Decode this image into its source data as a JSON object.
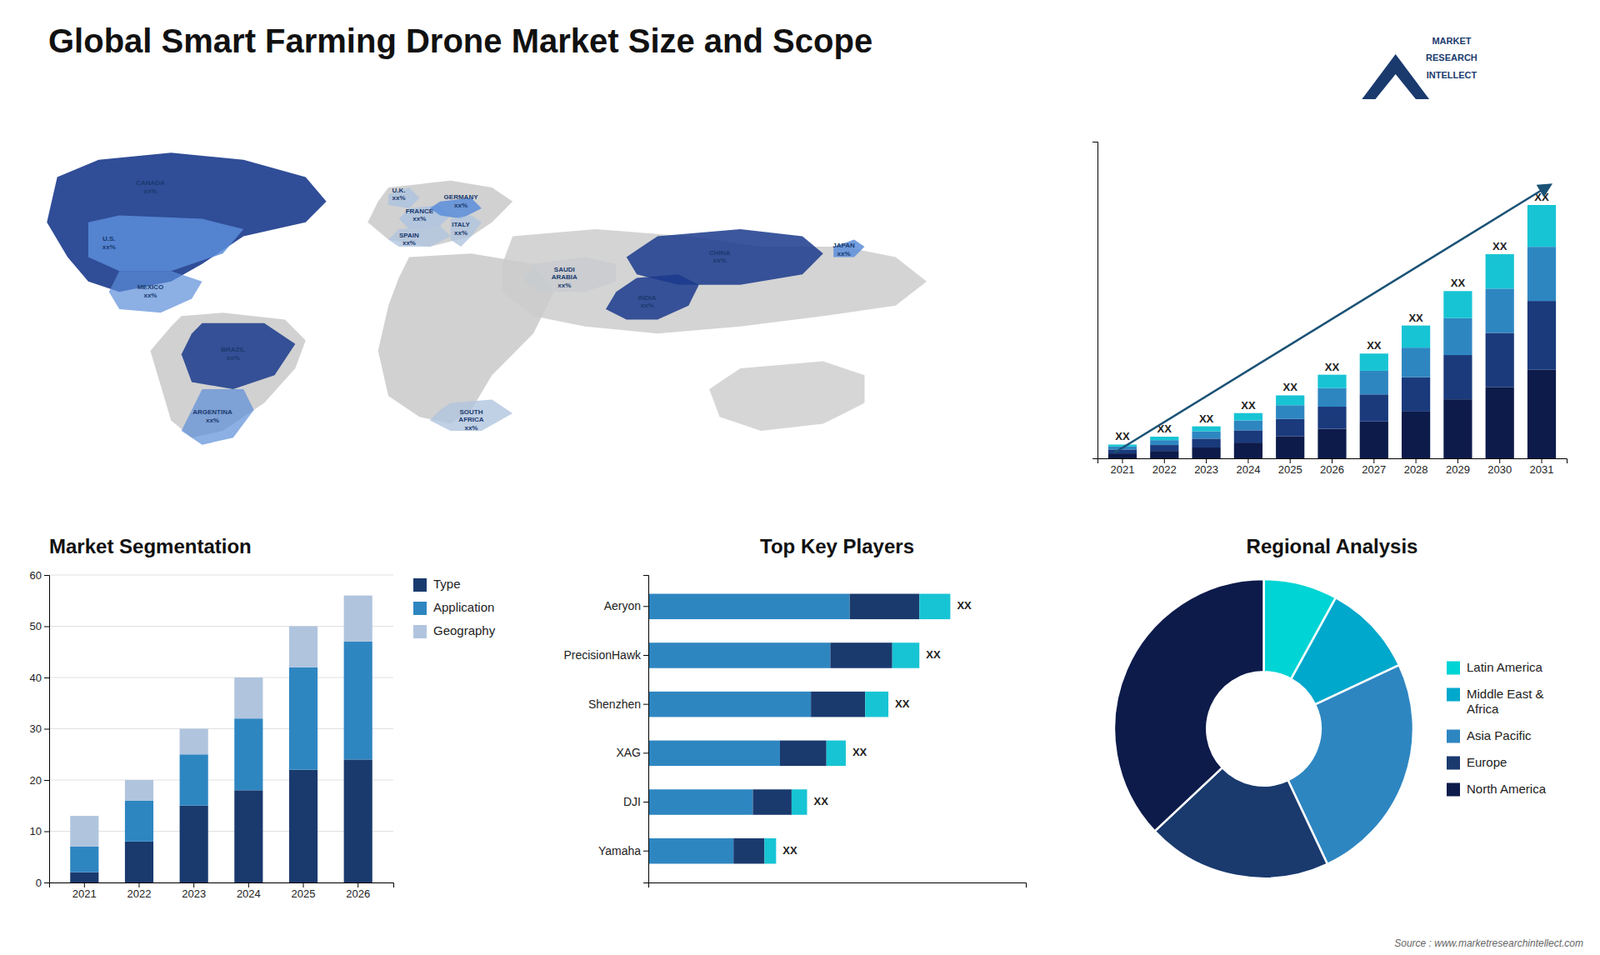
{
  "chart_data": [
    {
      "type": "map",
      "title": "Global Smart Farming Drone Market Size and Scope",
      "annotations": [
        "CANADA\nxx%",
        "U.S.\nxx%",
        "MEXICO\nxx%",
        "BRAZIL\nxx%",
        "ARGENTINA\nxx%",
        "U.K.\nxx%",
        "FRANCE\nxx%",
        "SPAIN\nxx%",
        "GERMANY\nxx%",
        "ITALY\nxx%",
        "SAUDI\nARABIA\nxx%",
        "SOUTH\nAFRICA\nxx%",
        "CHINA\nxx%",
        "JAPAN\nxx%",
        "INDIA\nxx%"
      ]
    },
    {
      "type": "logo",
      "annotations": [
        "MARKET",
        "RESEARCH",
        "INTELLECT"
      ]
    },
    {
      "type": "bar",
      "stacked": true,
      "tick_labels": "x",
      "categories": [
        "2021",
        "2022",
        "2023",
        "2024",
        "2025",
        "2026",
        "2027",
        "2028",
        "2029",
        "2030",
        "2031"
      ],
      "series": [
        {
          "color": "#0d1b4b",
          "values": [
            1.0,
            1.5,
            2.2,
            3.2,
            4.5,
            6.0,
            7.5,
            9.5,
            12.0,
            14.5,
            18.0
          ]
        },
        {
          "color": "#1a3a7c",
          "values": [
            0.8,
            1.2,
            1.8,
            2.5,
            3.5,
            4.5,
            5.5,
            7.0,
            9.0,
            11.0,
            14.0
          ]
        },
        {
          "color": "#2e86c1",
          "values": [
            0.6,
            1.0,
            1.5,
            2.0,
            2.8,
            3.8,
            4.8,
            6.0,
            7.5,
            9.0,
            11.0
          ]
        },
        {
          "color": "#17c4d4",
          "values": [
            0.4,
            0.7,
            1.0,
            1.5,
            2.0,
            2.7,
            3.5,
            4.5,
            5.5,
            7.0,
            8.5
          ]
        }
      ],
      "ylim": [
        0,
        64.375
      ],
      "annotations": [
        "XX",
        "XX",
        "XX",
        "XX",
        "XX",
        "XX",
        "XX",
        "XX",
        "XX",
        "XX",
        "XX"
      ]
    },
    {
      "type": "bar",
      "stacked": true,
      "title": "Market Segmentation",
      "categories": [
        "2021",
        "2022",
        "2023",
        "2024",
        "2025",
        "2026"
      ],
      "series": [
        {
          "name": "Type",
          "color": "#1a3a6e",
          "values": [
            2,
            8,
            15,
            18,
            22,
            24
          ]
        },
        {
          "name": "Application",
          "color": "#2e86c1",
          "values": [
            5,
            8,
            10,
            14,
            20,
            23
          ]
        },
        {
          "name": "Geography",
          "color": "#b0c4de",
          "values": [
            6,
            4,
            5,
            8,
            8,
            9
          ]
        }
      ],
      "ylim": [
        0,
        60
      ],
      "yticks": [
        0,
        10,
        20,
        30,
        40,
        50,
        60
      ],
      "grid": true,
      "legend": "right"
    },
    {
      "type": "bar",
      "stacked": true,
      "orientation": "horizontal",
      "tick_labels": "y",
      "title": "Top Key Players",
      "categories": [
        "Aeryon",
        "PrecisionHawk",
        "Shenzhen",
        "XAG",
        "DJI",
        "Yamaha"
      ],
      "series": [
        {
          "color": "#2e86c1",
          "values": [
            52,
            47,
            42,
            34,
            27,
            22
          ]
        },
        {
          "color": "#1a3a6e",
          "values": [
            18,
            16,
            14,
            12,
            10,
            8
          ]
        },
        {
          "color": "#17c4d4",
          "values": [
            8,
            7,
            6,
            5,
            4,
            3
          ]
        }
      ],
      "xlim": [
        0,
        97.5
      ],
      "annotations": [
        "XX",
        "XX",
        "XX",
        "XX",
        "XX",
        "XX"
      ]
    },
    {
      "type": "pie",
      "title": "Regional Analysis",
      "categories": [
        "Latin America",
        "Middle East &\nAfrica",
        "Asia Pacific",
        "Europe",
        "North America"
      ],
      "values": [
        8,
        10,
        25,
        20,
        37
      ],
      "colors": [
        "#00d4d4",
        "#00a8cc",
        "#2e86c1",
        "#1a3a6e",
        "#0d1b4b"
      ],
      "legend": "right",
      "annotations": [
        "Source : www.marketresearchintellect.com"
      ]
    }
  ]
}
